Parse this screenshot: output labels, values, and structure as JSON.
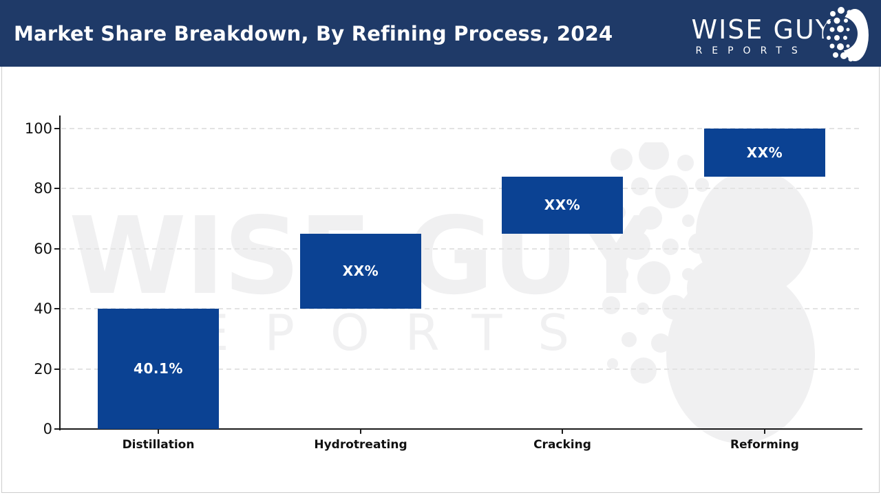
{
  "header": {
    "title": "Market Share Breakdown, By Refining Process, 2024",
    "brand": {
      "name": "WISE GUY",
      "sub": "REPORTS"
    }
  },
  "watermark": {
    "line1": "WISE GUY",
    "line2": "REPORTS"
  },
  "colors": {
    "header_bg": "#1f3a68",
    "title_text": "#ffffff",
    "bar": "#0b4293",
    "bar_label": "#ffffff",
    "axis": "#1a1a1a",
    "grid": "#e3e3e3",
    "tick_text": "#111111",
    "watermark": "#f0f0f1",
    "frame": "#cccccc"
  },
  "chart_data": {
    "type": "bar",
    "subtype": "waterfall",
    "title": "Market Share Breakdown, By Refining Process, 2024",
    "categories": [
      "Distillation",
      "Hydrotreating",
      "Cracking",
      "Reforming"
    ],
    "segments": [
      {
        "category": "Distillation",
        "start": 0,
        "end": 40.1,
        "value": 40.1,
        "label": "40.1%"
      },
      {
        "category": "Hydrotreating",
        "start": 40.1,
        "end": 65,
        "value": 24.9,
        "label": "XX%"
      },
      {
        "category": "Cracking",
        "start": 65,
        "end": 84,
        "value": 19.0,
        "label": "XX%"
      },
      {
        "category": "Reforming",
        "start": 84,
        "end": 100,
        "value": 16.0,
        "label": "XX%"
      }
    ],
    "xlabel": "",
    "ylabel": "",
    "ylim": [
      0,
      105
    ],
    "yticks": [
      0,
      20,
      40,
      60,
      80,
      100
    ],
    "grid": "horizontal-dashed",
    "legend": "none",
    "units": "percent market share"
  }
}
